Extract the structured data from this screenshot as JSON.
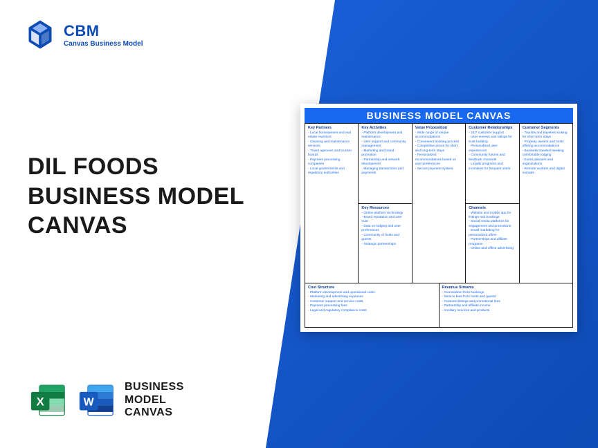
{
  "logo": {
    "title": "CBM",
    "subtitle": "Canvas Business Model"
  },
  "page_title_lines": [
    "DIL FOODS",
    "BUSINESS MODEL",
    "CANVAS"
  ],
  "file_label_lines": [
    "BUSINESS",
    "MODEL",
    "CANVAS"
  ],
  "canvas": {
    "title": "BUSINESS MODEL CANVAS",
    "cells": {
      "key_partners": {
        "h": "Key Partners",
        "items": [
          "Local homeowners and real estate investors",
          "Cleaning and maintenance services",
          "Travel agencies and tourism boards",
          "Payment processing companies",
          "Local governments and regulatory authorities"
        ]
      },
      "key_activities": {
        "h": "Key Activities",
        "items": [
          "Platform development and maintenance",
          "User support and community management",
          "Marketing and brand promotion",
          "Partnership and network development",
          "Managing transactions and payments"
        ]
      },
      "key_resources": {
        "h": "Key Resources",
        "items": [
          "Online platform technology",
          "Brand reputation and user trust",
          "Data on lodging and user preferences",
          "Community of hosts and guests",
          "Strategic partnerships"
        ]
      },
      "value_prop": {
        "h": "Value Proposition",
        "items": [
          "Wide range of unique accommodations",
          "Convenient booking process",
          "Competitive prices for short and long-term stays",
          "Personalized recommendations based on user preferences",
          "Secure payment system"
        ]
      },
      "cust_rel": {
        "h": "Customer Relationships",
        "items": [
          "24/7 customer support",
          "User reviews and ratings for trust-building",
          "Personalized user experiences",
          "Community forums and feedback channels",
          "Loyalty programs and incentives for frequent users"
        ]
      },
      "channels": {
        "h": "Channels",
        "items": [
          "Website and mobile app for listings and bookings",
          "Social media platforms for engagement and promotions",
          "Email marketing for personalized offers",
          "Partnerships and affiliate programs",
          "Online and offline advertising"
        ]
      },
      "cust_seg": {
        "h": "Customer Segments",
        "items": [
          "Tourists and travelers looking for short-term stays",
          "Property owners and hosts offering accommodations",
          "Business travelers seeking comfortable lodging",
          "Event planners and organizations",
          "Remote workers and digital nomads"
        ]
      },
      "cost": {
        "h": "Cost Structure",
        "items": [
          "Platform development and operational costs",
          "Marketing and advertising expenses",
          "Customer support and service costs",
          "Payment processing fees",
          "Legal and regulatory compliance costs"
        ]
      },
      "revenue": {
        "h": "Revenue Streams",
        "items": [
          "Commission from bookings",
          "Service fees from hosts and guests",
          "Featured listings and promotional fees",
          "Partnership and affiliate income",
          "Ancillary services and products"
        ]
      }
    }
  },
  "colors": {
    "brand_blue": "#0d4bb5",
    "canvas_blue": "#1868f0",
    "excel_green": "#107c41",
    "word_blue": "#185abd"
  }
}
